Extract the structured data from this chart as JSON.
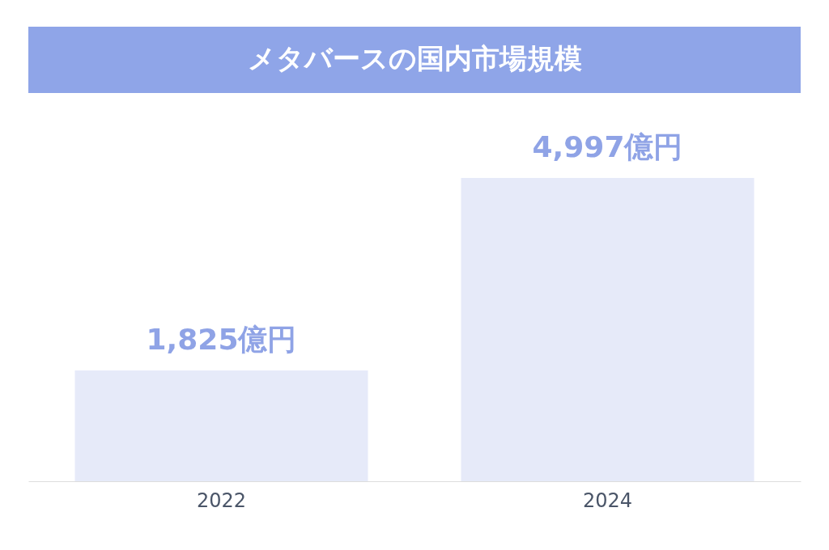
{
  "chart_data": {
    "type": "bar",
    "title": "メタバースの国内市場規模",
    "categories": [
      "2022",
      "2024"
    ],
    "values": [
      1825,
      4997
    ],
    "value_labels": [
      "1,825億円",
      "4,997億円"
    ],
    "color": "#e6eaf9"
  }
}
